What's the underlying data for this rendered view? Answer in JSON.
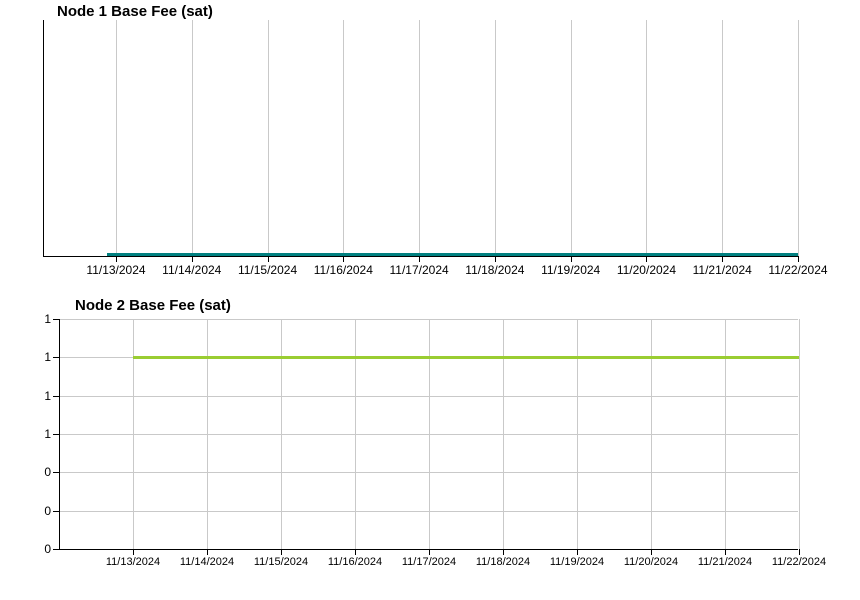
{
  "page": {
    "background": "#ffffff"
  },
  "colors": {
    "axis": "#000000",
    "grid": "#c9c9c9",
    "text": "#000000",
    "node1_line": "#008080",
    "node2_line": "#9acd32"
  },
  "chart_data": [
    {
      "type": "line",
      "title": "Node 1 Base Fee (sat)",
      "x": [
        "11/13/2024",
        "11/14/2024",
        "11/15/2024",
        "11/16/2024",
        "11/17/2024",
        "11/18/2024",
        "11/19/2024",
        "11/20/2024",
        "11/21/2024",
        "11/22/2024"
      ],
      "series": [
        {
          "name": "Node 1 Base Fee",
          "color": "#008080",
          "values": [
            0,
            0,
            0,
            0,
            0,
            0,
            0,
            0,
            0,
            0
          ]
        }
      ],
      "xlabel": "",
      "ylabel": "",
      "y_tick_labels": [],
      "grid": "vertical-only",
      "legend_position": "none"
    },
    {
      "type": "line",
      "title": "Node 2 Base Fee (sat)",
      "x": [
        "11/13/2024",
        "11/14/2024",
        "11/15/2024",
        "11/16/2024",
        "11/17/2024",
        "11/18/2024",
        "11/19/2024",
        "11/20/2024",
        "11/21/2024",
        "11/22/2024"
      ],
      "series": [
        {
          "name": "Node 2 Base Fee",
          "color": "#9acd32",
          "values": [
            1,
            1,
            1,
            1,
            1,
            1,
            1,
            1,
            1,
            1
          ]
        }
      ],
      "xlabel": "",
      "ylabel": "",
      "y_tick_labels": [
        "1",
        "1",
        "1",
        "1",
        "0",
        "0",
        "0"
      ],
      "grid": "both",
      "legend_position": "none"
    }
  ]
}
